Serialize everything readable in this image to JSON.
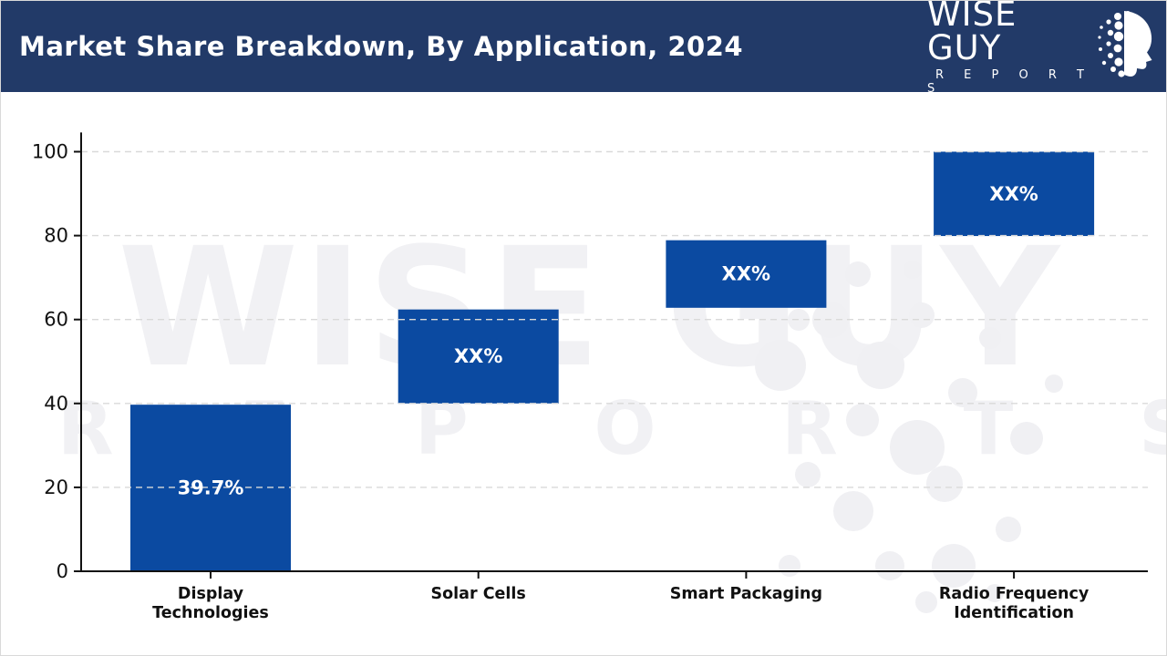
{
  "header": {
    "title": "Market Share Breakdown, By Application, 2024",
    "bg_color": "#223a68",
    "text_color": "#ffffff",
    "logo": {
      "name": "WISE GUY",
      "subtitle": "R E P O R T S"
    }
  },
  "watermark": {
    "line1": "WISE GUY",
    "line2": "R E P O R T S",
    "color": "#f1f1f4"
  },
  "chart_data": {
    "type": "bar",
    "subtype": "waterfall",
    "title": "Market Share Breakdown, By Application, 2024",
    "categories": [
      [
        "Display",
        "Technologies"
      ],
      [
        "Solar Cells"
      ],
      [
        "Smart Packaging"
      ],
      [
        "Radio Frequency",
        "Identification"
      ]
    ],
    "segments": [
      {
        "name": "Display Technologies",
        "start": 0,
        "end": 39.7,
        "label": "39.7%"
      },
      {
        "name": "Solar Cells",
        "start": 40,
        "end": 62.4,
        "label": "XX%"
      },
      {
        "name": "Smart Packaging",
        "start": 62.8,
        "end": 78.9,
        "label": "XX%"
      },
      {
        "name": "Radio Frequency Identification",
        "start": 79.9,
        "end": 100,
        "label": "XX%"
      }
    ],
    "yticks": [
      0,
      20,
      40,
      60,
      80,
      100
    ],
    "ylim": [
      0,
      104.6
    ],
    "xlabel": "",
    "ylabel": "",
    "legend": "none",
    "grid": {
      "axis": "y",
      "style": "dashed",
      "color": "#d9d9d9"
    },
    "bar_color": "#0b4aa1",
    "bar_label_color": "#ffffff",
    "axis_color": "#111111",
    "tick_label_color": "#111111"
  }
}
